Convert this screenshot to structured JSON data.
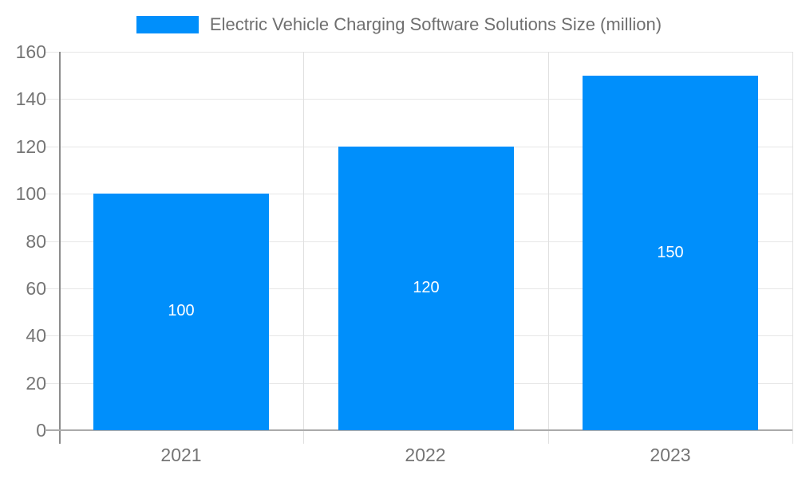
{
  "legend": {
    "label": "Electric Vehicle Charging Software Solutions Size (million)",
    "swatch_color": "#008FFB"
  },
  "chart_data": {
    "type": "bar",
    "title": "Electric Vehicle Charging Software Solutions Size (million)",
    "categories": [
      "2021",
      "2022",
      "2023"
    ],
    "values": [
      100,
      120,
      150
    ],
    "data_labels": [
      "100",
      "120",
      "150"
    ],
    "series": [
      {
        "name": "Electric Vehicle Charging Software Solutions Size (million)",
        "values": [
          100,
          120,
          150
        ]
      }
    ],
    "xlabel": "",
    "ylabel": "",
    "ylim": [
      0,
      160
    ],
    "yticks": [
      0,
      20,
      40,
      60,
      80,
      100,
      120,
      140,
      160
    ],
    "grid": true,
    "legend_position": "top",
    "bar_color": "#008FFB",
    "data_label_color": "#ffffff",
    "axis_label_color": "#757575"
  }
}
